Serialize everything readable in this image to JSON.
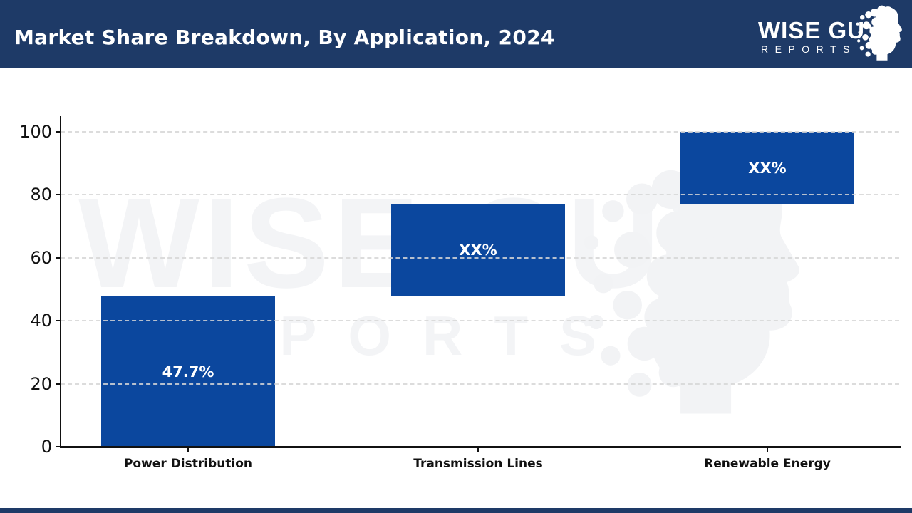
{
  "header": {
    "title": "Market Share Breakdown, By Application, 2024",
    "logo": {
      "wordmark": "WISE GUY",
      "subtext": "REPORTS"
    }
  },
  "watermark": {
    "line1": "WISE GUY",
    "line2": "REPORTS"
  },
  "chart_data": {
    "type": "bar",
    "variant": "waterfall",
    "title": "Market Share Breakdown, By Application, 2024",
    "categories": [
      "Power Distribution",
      "Transmission Lines",
      "Renewable Energy"
    ],
    "segments": [
      {
        "category": "Power Distribution",
        "start": 0,
        "end": 47.7,
        "label": "47.7%"
      },
      {
        "category": "Transmission Lines",
        "start": 47.7,
        "end": 77.1,
        "label": "XX%"
      },
      {
        "category": "Renewable Energy",
        "start": 77.1,
        "end": 100,
        "label": "XX%"
      }
    ],
    "yticks": [
      0,
      20,
      40,
      60,
      80,
      100
    ],
    "ylim": [
      0,
      105
    ],
    "xlabel": "",
    "ylabel": "",
    "grid": "horizontal-dashed-over-bars",
    "legend": "none",
    "bar_color": "#0b479e",
    "bar_label_color": "#ffffff"
  },
  "colors": {
    "header_bg": "#1e3a67",
    "footer_bg": "#1e3a67",
    "bar": "#0b479e",
    "grid": "#d6d6d6",
    "axis": "#111111",
    "watermark": "#f3f4f6"
  }
}
